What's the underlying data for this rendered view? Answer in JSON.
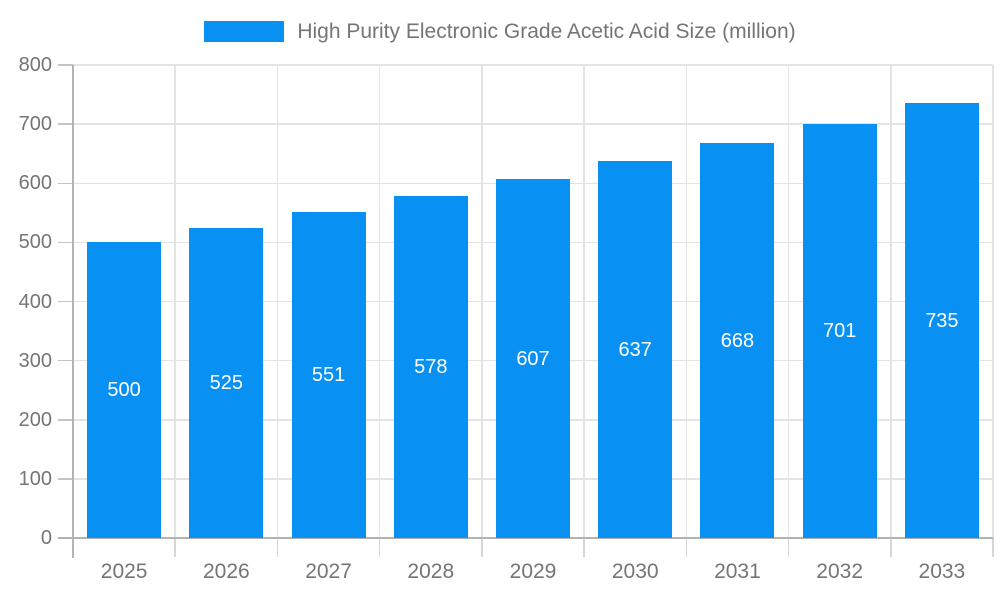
{
  "chart_data": {
    "type": "bar",
    "title": "High Purity Electronic Grade Acetic Acid Size (million)",
    "legend_position": "top-center",
    "categories": [
      "2025",
      "2026",
      "2027",
      "2028",
      "2029",
      "2030",
      "2031",
      "2032",
      "2033"
    ],
    "values": [
      500,
      525,
      551,
      578,
      607,
      637,
      668,
      701,
      735
    ],
    "xlabel": "",
    "ylabel": "",
    "ylim": [
      0,
      800
    ],
    "yticks": [
      0,
      100,
      200,
      300,
      400,
      500,
      600,
      700,
      800
    ],
    "grid": true,
    "bar_labels_shown": true,
    "colors": {
      "bar": "#0891f3",
      "grid": "#e3e3e3",
      "axis": "#b3b3b3",
      "tick_text": "#757575",
      "title_text": "#757575",
      "bar_label_text": "#ffffff",
      "background": "#ffffff"
    }
  }
}
